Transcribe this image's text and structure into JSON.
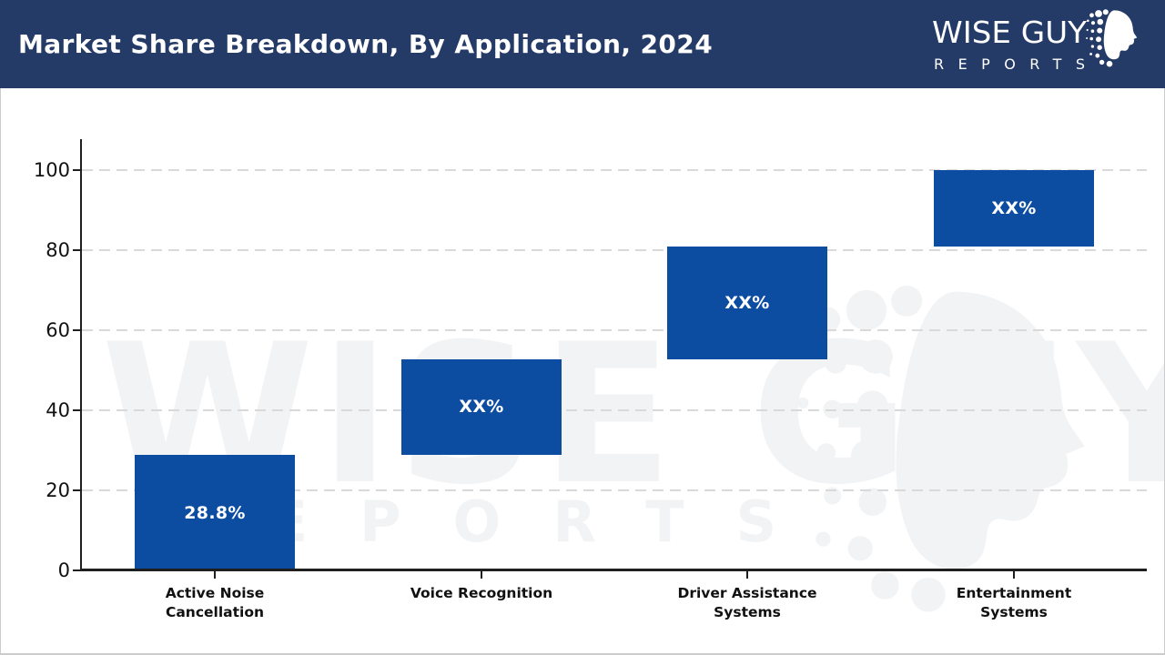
{
  "header": {
    "title": "Market Share Breakdown, By Application, 2024",
    "logo": {
      "wordmark": "WISE GUY",
      "subtext": "REPORTS"
    }
  },
  "watermark": {
    "wordmark": "WISE GUY",
    "subtext": "REPORTS"
  },
  "colors": {
    "header_bg": "#243A67",
    "bar": "#0C4DA2",
    "bar_value_text": "#FFFFFF",
    "axis": "#1F1F1F",
    "grid": "#D9D9D9",
    "tick_text": "#111111",
    "watermark": "#F2F3F5",
    "card_border": "#CCCCCC"
  },
  "chart_data": {
    "type": "bar",
    "variant": "waterfall",
    "title": "Market Share Breakdown, By Application, 2024",
    "categories": [
      "Active Noise Cancellation",
      "Voice Recognition",
      "Driver Assistance Systems",
      "Entertainment Systems"
    ],
    "category_lines": [
      [
        "Active Noise",
        "Cancellation"
      ],
      [
        "Voice Recognition"
      ],
      [
        "Driver Assistance",
        "Systems"
      ],
      [
        "Entertainment",
        "Systems"
      ]
    ],
    "segments": [
      {
        "category": "Active Noise Cancellation",
        "start": 0,
        "end": 28.8,
        "label": "28.8%"
      },
      {
        "category": "Voice Recognition",
        "start": 28.8,
        "end": 52.8,
        "label": "XX%"
      },
      {
        "category": "Driver Assistance Systems",
        "start": 52.8,
        "end": 80.8,
        "label": "XX%"
      },
      {
        "category": "Entertainment Systems",
        "start": 81,
        "end": 100,
        "label": "XX%"
      }
    ],
    "ylim": [
      0,
      100
    ],
    "yticks": [
      0,
      20,
      40,
      60,
      80,
      100
    ],
    "xlabel": "",
    "ylabel": "",
    "grid": "horizontal-dashed",
    "legend": "none"
  }
}
